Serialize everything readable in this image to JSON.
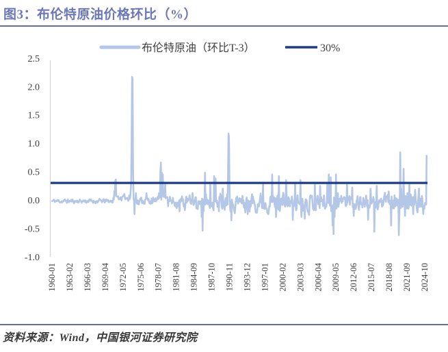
{
  "page": {
    "figure_label_title": "图3：布伦特原油价格环比（%）",
    "source_note": "资料来源：Wind，中国银河证券研究院"
  },
  "colors": {
    "accent_indigo": "#6b77ba",
    "rule_indigo": "#5f6cb0",
    "series_light_blue": "#b4c7e7",
    "reference_navy": "#1b3a94",
    "axis_gray": "#d6d6d6",
    "tick_text": "#3f3f3f",
    "legend_text": "#404040"
  },
  "chart_data": {
    "type": "line",
    "title": "图3：布伦特原油价格环比（%）",
    "x_start": "1960-01",
    "x_end": "2025-02",
    "x_tick_interval_months": 37,
    "x_tick_labels": [
      "1960-01",
      "1963-02",
      "1966-03",
      "1969-04",
      "1972-05",
      "1975-06",
      "1978-07",
      "1981-08",
      "1984-09",
      "1987-10",
      "1990-11",
      "1993-12",
      "1997-01",
      "2000-02",
      "2003-03",
      "2006-04",
      "2009-05",
      "2012-06",
      "2015-07",
      "2018-08",
      "2021-09",
      "2024-10"
    ],
    "y_ticks": [
      "2.5",
      "2.0",
      "1.5",
      "1.0",
      "0.5",
      "0.0",
      "-0.5",
      "-1.0"
    ],
    "ylim": [
      -1.0,
      2.5
    ],
    "grid": "off",
    "legend_position": "top",
    "legend": [
      {
        "label": "布伦特原油（环比T-3）",
        "color": "#b4c7e7"
      },
      {
        "label": "30%",
        "color": "#1b3a94"
      }
    ],
    "reference_line": {
      "label": "30%",
      "value": 0.3
    },
    "series": {
      "name": "布伦特原油（环比T-3）",
      "unit": "ratio (1.0 = 100%)",
      "seed": 11,
      "noise_eras": [
        {
          "from": "1960-01",
          "to": "1970-08",
          "amp": 0.03,
          "bias": -0.02
        },
        {
          "from": "1970-09",
          "to": "1973-08",
          "amp": 0.04,
          "bias": 0.04
        },
        {
          "from": "1973-09",
          "to": "1974-09",
          "amp": 0.03,
          "bias": 0.0
        },
        {
          "from": "1974-10",
          "to": "1978-07",
          "amp": 0.05,
          "bias": -0.01
        },
        {
          "from": "1978-08",
          "to": "1980-02",
          "amp": 0.05,
          "bias": 0.08
        },
        {
          "from": "1980-03",
          "to": "1985-10",
          "amp": 0.085,
          "bias": -0.03
        },
        {
          "from": "1985-11",
          "to": "1986-11",
          "amp": 0.06,
          "bias": -0.05
        },
        {
          "from": "1986-12",
          "to": "1990-05",
          "amp": 0.11,
          "bias": -0.02
        },
        {
          "from": "1990-06",
          "to": "1991-05",
          "amp": 0.06,
          "bias": 0.0
        },
        {
          "from": "1991-06",
          "to": "2007-12",
          "amp": 0.13,
          "bias": -0.035
        },
        {
          "from": "2008-01",
          "to": "2009-09",
          "amp": 0.1,
          "bias": -0.05
        },
        {
          "from": "2009-10",
          "to": "2014-08",
          "amp": 0.11,
          "bias": -0.025
        },
        {
          "from": "2014-09",
          "to": "2016-06",
          "amp": 0.1,
          "bias": -0.06
        },
        {
          "from": "2016-07",
          "to": "2019-12",
          "amp": 0.105,
          "bias": -0.035
        },
        {
          "from": "2020-01",
          "to": "2021-04",
          "amp": 0.08,
          "bias": -0.03
        },
        {
          "from": "2021-05",
          "to": "2025-02",
          "amp": 0.115,
          "bias": -0.045
        }
      ],
      "key_points": [
        {
          "m": "1970-09",
          "v": 0.04
        },
        {
          "m": "1970-11",
          "v": 0.16
        },
        {
          "m": "1971-01",
          "v": 0.34
        },
        {
          "m": "1971-02",
          "v": 0.36
        },
        {
          "m": "1971-03",
          "v": 0.08
        },
        {
          "m": "1973-06",
          "v": 0.08
        },
        {
          "m": "1973-09",
          "v": 0.14
        },
        {
          "m": "1973-10",
          "v": 0.3
        },
        {
          "m": "1973-11",
          "v": 1.05
        },
        {
          "m": "1973-12",
          "v": 2.17
        },
        {
          "m": "1974-01",
          "v": 2.13
        },
        {
          "m": "1974-02",
          "v": 0.55
        },
        {
          "m": "1974-03",
          "v": 0.05
        },
        {
          "m": "1974-05",
          "v": -0.25
        },
        {
          "m": "1974-08",
          "v": 0.12
        },
        {
          "m": "1975-02",
          "v": -0.08
        },
        {
          "m": "1976-06",
          "v": 0.12
        },
        {
          "m": "1977-06",
          "v": -0.06
        },
        {
          "m": "1978-08",
          "v": 0.12
        },
        {
          "m": "1978-11",
          "v": 0.5
        },
        {
          "m": "1978-12",
          "v": 0.66
        },
        {
          "m": "1979-02",
          "v": 0.48
        },
        {
          "m": "1979-04",
          "v": 0.45
        },
        {
          "m": "1979-06",
          "v": 0.15
        },
        {
          "m": "1979-09",
          "v": 0.28
        },
        {
          "m": "1980-01",
          "v": 0.05
        },
        {
          "m": "1982-03",
          "v": -0.2
        },
        {
          "m": "1983-02",
          "v": -0.18
        },
        {
          "m": "1984-06",
          "v": 0.12
        },
        {
          "m": "1985-02",
          "v": -0.15
        },
        {
          "m": "1986-01",
          "v": -0.3
        },
        {
          "m": "1986-03",
          "v": -0.54
        },
        {
          "m": "1986-05",
          "v": -0.2
        },
        {
          "m": "1986-08",
          "v": 0.48
        },
        {
          "m": "1986-10",
          "v": 0.1
        },
        {
          "m": "1987-07",
          "v": 0.3
        },
        {
          "m": "1988-03",
          "v": 0.42
        },
        {
          "m": "1988-06",
          "v": 0.38
        },
        {
          "m": "1989-01",
          "v": -0.2
        },
        {
          "m": "1989-09",
          "v": 0.2
        },
        {
          "m": "1990-06",
          "v": 0.1
        },
        {
          "m": "1990-08",
          "v": 0.45
        },
        {
          "m": "1990-09",
          "v": 1.17
        },
        {
          "m": "1990-10",
          "v": 1.1
        },
        {
          "m": "1990-11",
          "v": 0.3
        },
        {
          "m": "1991-01",
          "v": -0.2
        },
        {
          "m": "1991-03",
          "v": -0.36
        },
        {
          "m": "1991-05",
          "v": -0.05
        },
        {
          "m": "1993-08",
          "v": -0.22
        },
        {
          "m": "1994-01",
          "v": -0.25
        },
        {
          "m": "1996-09",
          "v": 0.3
        },
        {
          "m": "1998-04",
          "v": 0.45
        },
        {
          "m": "1998-12",
          "v": -0.3
        },
        {
          "m": "1999-06",
          "v": 0.42
        },
        {
          "m": "2000-09",
          "v": 0.35
        },
        {
          "m": "2001-11",
          "v": -0.35
        },
        {
          "m": "2002-04",
          "v": 0.3
        },
        {
          "m": "2003-03",
          "v": 0.35
        },
        {
          "m": "2003-05",
          "v": -0.3
        },
        {
          "m": "2003-12",
          "v": -0.33
        },
        {
          "m": "2005-09",
          "v": 0.3
        },
        {
          "m": "2006-08",
          "v": 0.25
        },
        {
          "m": "2007-11",
          "v": 0.3
        },
        {
          "m": "2008-02",
          "v": 0.45
        },
        {
          "m": "2008-06",
          "v": 0.4
        },
        {
          "m": "2008-10",
          "v": -0.45
        },
        {
          "m": "2008-12",
          "v": -0.6
        },
        {
          "m": "2009-02",
          "v": -0.3
        },
        {
          "m": "2009-05",
          "v": 0.45
        },
        {
          "m": "2009-09",
          "v": 0.12
        },
        {
          "m": "2011-04",
          "v": 0.3
        },
        {
          "m": "2012-03",
          "v": 0.22
        },
        {
          "m": "2012-06",
          "v": -0.28
        },
        {
          "m": "2014-12",
          "v": -0.35
        },
        {
          "m": "2015-05",
          "v": 0.2
        },
        {
          "m": "2016-01",
          "v": -0.56
        },
        {
          "m": "2016-04",
          "v": -0.1
        },
        {
          "m": "2016-06",
          "v": 0.25
        },
        {
          "m": "2018-07",
          "v": 0.15
        },
        {
          "m": "2018-12",
          "v": -0.45
        },
        {
          "m": "2019-06",
          "v": -0.15
        },
        {
          "m": "2020-01",
          "v": -0.1
        },
        {
          "m": "2020-04",
          "v": -0.62
        },
        {
          "m": "2020-05",
          "v": -0.3
        },
        {
          "m": "2020-07",
          "v": 0.84
        },
        {
          "m": "2020-09",
          "v": 0.2
        },
        {
          "m": "2020-12",
          "v": -0.12
        },
        {
          "m": "2021-02",
          "v": 0.55
        },
        {
          "m": "2021-05",
          "v": -0.28
        },
        {
          "m": "2021-10",
          "v": 0.12
        },
        {
          "m": "2022-02",
          "v": 0.3
        },
        {
          "m": "2022-06",
          "v": -0.1
        },
        {
          "m": "2022-10",
          "v": -0.25
        },
        {
          "m": "2023-02",
          "v": 0.18
        },
        {
          "m": "2023-07",
          "v": -0.22
        },
        {
          "m": "2023-10",
          "v": 0.2
        },
        {
          "m": "2024-03",
          "v": -0.12
        },
        {
          "m": "2024-07",
          "v": -0.25
        },
        {
          "m": "2024-11",
          "v": -0.05
        },
        {
          "m": "2025-01",
          "v": -0.08
        },
        {
          "m": "2025-02",
          "v": 0.78
        }
      ]
    }
  }
}
